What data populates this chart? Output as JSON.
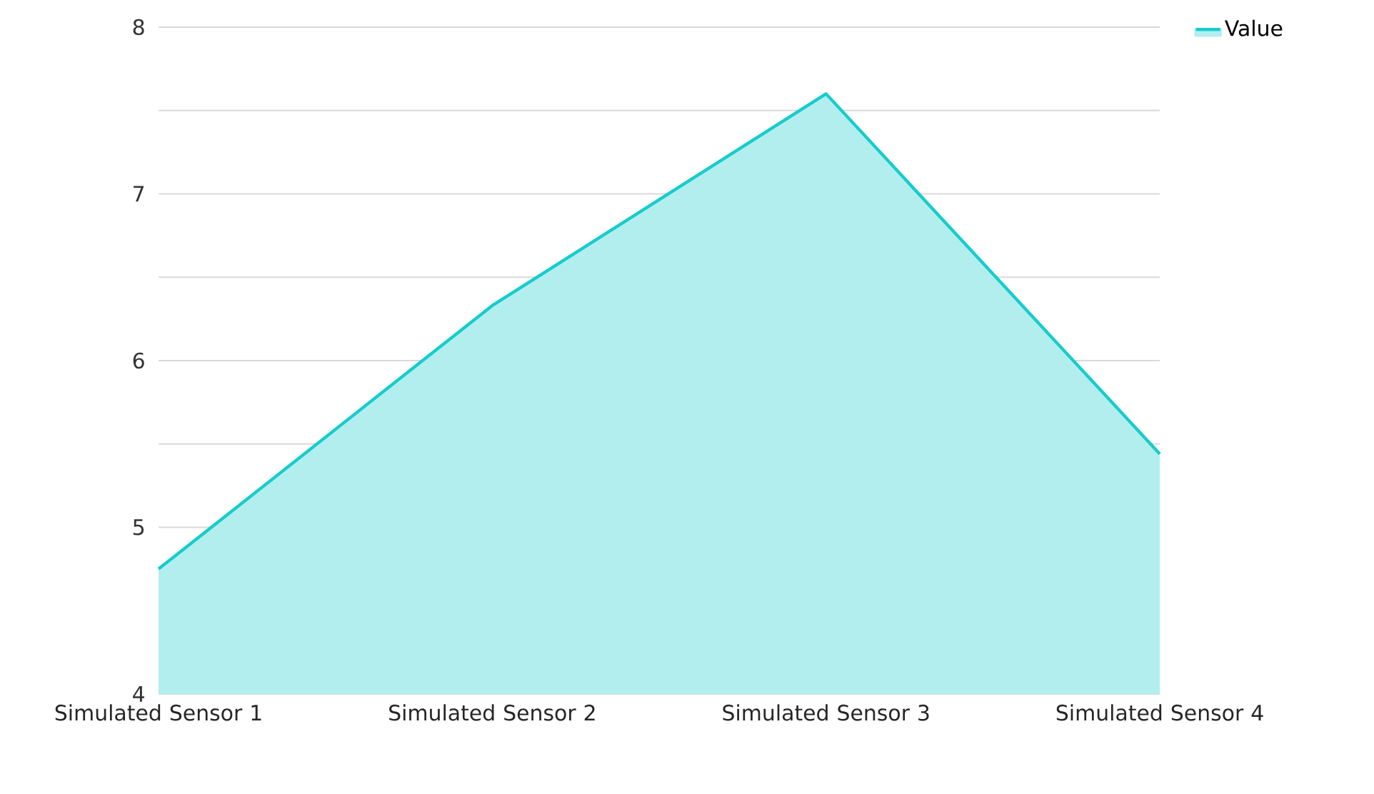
{
  "chart_data": {
    "type": "area",
    "categories": [
      "Simulated Sensor 1",
      "Simulated Sensor 2",
      "Simulated Sensor 3",
      "Simulated Sensor 4"
    ],
    "series": [
      {
        "name": "Value",
        "color": "#17cccc",
        "values": [
          4.75,
          6.33,
          7.6,
          5.44
        ]
      }
    ],
    "ylim": [
      4,
      8
    ],
    "yticks": [
      4,
      {
        "value": 4.5,
        "label": null
      },
      5,
      {
        "value": 5.5,
        "label": null
      },
      6,
      {
        "value": 6.5,
        "label": null
      },
      7,
      {
        "value": 7.5,
        "label": null
      },
      8
    ],
    "grid": "y",
    "legend": "top right",
    "marker": "none",
    "line_style": "solid"
  }
}
